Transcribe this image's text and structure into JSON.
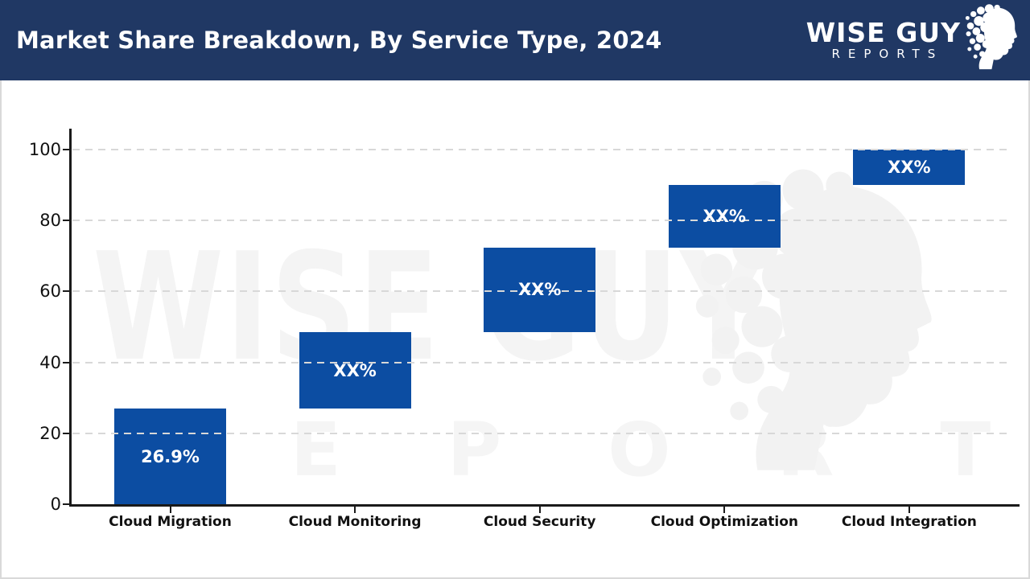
{
  "header": {
    "title": "Market Share Breakdown, By Service Type, 2024",
    "background_color": "#203864",
    "logo": {
      "wordmark": "WISE GUY",
      "subtitle": "REPORTS"
    }
  },
  "watermark": {
    "line1": "WISE GUY",
    "line2": "R E P O R T S"
  },
  "chart_data": {
    "type": "bar",
    "subtype": "waterfall-segmented",
    "title": "Market Share Breakdown, By Service Type, 2024",
    "categories": [
      "Cloud Migration",
      "Cloud Monitoring",
      "Cloud Security",
      "Cloud Optimization",
      "Cloud Integration"
    ],
    "segments": [
      {
        "category": "Cloud Migration",
        "start": 0,
        "end": 26.9,
        "label": "26.9%"
      },
      {
        "category": "Cloud Monitoring",
        "start": 26.9,
        "end": 48.6,
        "label": "XX%"
      },
      {
        "category": "Cloud Security",
        "start": 48.6,
        "end": 72.4,
        "label": "XX%"
      },
      {
        "category": "Cloud Optimization",
        "start": 72.4,
        "end": 90,
        "label": "XX%"
      },
      {
        "category": "Cloud Integration",
        "start": 90,
        "end": 100,
        "label": "XX%"
      }
    ],
    "xlabel": "",
    "ylabel": "",
    "yticks": [
      0,
      20,
      40,
      60,
      80,
      100
    ],
    "ylim": [
      0,
      105
    ],
    "grid": "horizontal-dashed",
    "gridline_color": "#d8d8d8",
    "bar_color": "#0c4da2",
    "bar_label_color": "#ffffff",
    "axis_color": "#1a1a1a"
  }
}
